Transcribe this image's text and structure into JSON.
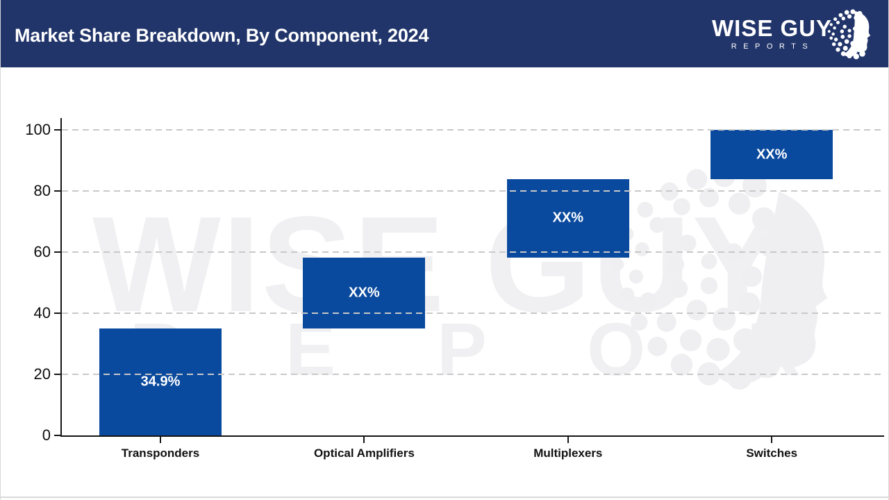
{
  "header": {
    "title": "Market Share Breakdown, By Component, 2024",
    "bg_color": "#22356a",
    "logo": {
      "line1": "WISE GUY",
      "line2": "REPORTS"
    }
  },
  "watermark": {
    "line1": "WISE GUY",
    "line2": "REPORTS"
  },
  "chart_data": {
    "type": "bar",
    "variant": "waterfall",
    "title": "Market Share Breakdown, By Component, 2024",
    "categories": [
      "Transponders",
      "Optical Amplifiers",
      "Multiplexers",
      "Switches"
    ],
    "bars": [
      {
        "category": "Transponders",
        "start": 0,
        "end": 34.9,
        "label": "34.9%"
      },
      {
        "category": "Optical Amplifiers",
        "start": 34.9,
        "end": 58.2,
        "label": "XX%"
      },
      {
        "category": "Multiplexers",
        "start": 58.2,
        "end": 83.9,
        "label": "XX%"
      },
      {
        "category": "Switches",
        "start": 83.9,
        "end": 100,
        "label": "XX%"
      }
    ],
    "xlabel": "",
    "ylabel": "",
    "yticks": [
      0,
      20,
      40,
      60,
      80,
      100
    ],
    "ylim": [
      0,
      103.9
    ],
    "grid": "horizontal-dashed-over-bars",
    "legend": "none",
    "bar_color": "#0a4a9e",
    "bar_label_color": "#ffffff",
    "axis_color": "#151515",
    "grid_color": "#c8c8c8"
  },
  "colors": {
    "header_bg": "#22356a",
    "bar_blue": "#0a4a9e",
    "watermark_gray": "#f0f0f2",
    "page_bg": "#ffffff"
  }
}
